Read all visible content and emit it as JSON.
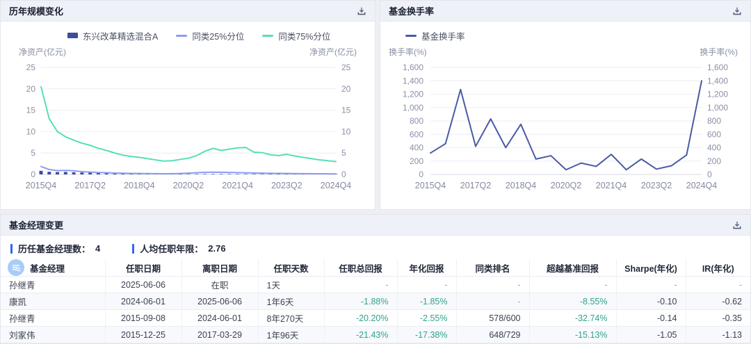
{
  "colors": {
    "accent_blue": "#2e66f6",
    "bar_navy": "#3e4d9b",
    "line_purple": "#8c9cf1",
    "line_mint": "#55dfb4",
    "line_indigo": "#4a59a4",
    "green_value": "#2fa28c",
    "panel_header_bg": "#eff1f8"
  },
  "icons": {
    "download": "download-icon",
    "manager_badge": "list-search-icon"
  },
  "panel_scale": {
    "title": "历年规模变化"
  },
  "panel_turnover": {
    "title": "基金换手率"
  },
  "panel_manager": {
    "title": "基金经理变更",
    "stats": [
      {
        "label": "历任基金经理数：",
        "value": "4"
      },
      {
        "label": "人均任职年限：",
        "value": "2.76"
      }
    ],
    "table": {
      "headers": [
        "基金经理",
        "任职日期",
        "离职日期",
        "任职天数",
        "任职总回报",
        "年化回报",
        "同类排名",
        "超越基准回报",
        "Sharpe(年化)",
        "IR(年化)"
      ],
      "rows": [
        {
          "manager": "孙继青",
          "start": "2025-06-06",
          "end": "在职",
          "days": "1天",
          "total_return": "-",
          "annual_return": "-",
          "rank": "-",
          "excess_return": "-",
          "sharpe": "-",
          "ir": "-"
        },
        {
          "manager": "康凯",
          "start": "2024-06-01",
          "end": "2025-06-06",
          "days": "1年6天",
          "total_return": "-1.88%",
          "annual_return": "-1.85%",
          "rank": "-",
          "excess_return": "-8.55%",
          "sharpe": "-0.10",
          "ir": "-0.62"
        },
        {
          "manager": "孙继青",
          "start": "2015-09-08",
          "end": "2024-06-01",
          "days": "8年270天",
          "total_return": "-20.20%",
          "annual_return": "-2.55%",
          "rank": "578/600",
          "excess_return": "-32.74%",
          "sharpe": "-0.14",
          "ir": "-0.35"
        },
        {
          "manager": "刘家伟",
          "start": "2015-12-25",
          "end": "2017-03-29",
          "days": "1年96天",
          "total_return": "-21.43%",
          "annual_return": "-17.38%",
          "rank": "648/729",
          "excess_return": "-15.13%",
          "sharpe": "-1.05",
          "ir": "-1.13"
        }
      ]
    }
  },
  "chart_data": [
    {
      "type": "bar+line",
      "title": "历年规模变化",
      "ylabel_left": "净资产(亿元)",
      "ylabel_right": "净资产(亿元)",
      "ylim": [
        0,
        25
      ],
      "yticks": [
        0,
        5,
        10,
        15,
        20,
        25
      ],
      "tick_format": "plain",
      "grid": true,
      "legend_position": "top-left",
      "categories": [
        "2015Q4",
        "2016Q1",
        "2016Q2",
        "2016Q3",
        "2016Q4",
        "2017Q1",
        "2017Q2",
        "2017Q3",
        "2017Q4",
        "2018Q1",
        "2018Q2",
        "2018Q3",
        "2018Q4",
        "2019Q1",
        "2019Q2",
        "2019Q3",
        "2019Q4",
        "2020Q1",
        "2020Q2",
        "2020Q3",
        "2020Q4",
        "2021Q1",
        "2021Q2",
        "2021Q3",
        "2021Q4",
        "2022Q1",
        "2022Q2",
        "2022Q3",
        "2022Q4",
        "2023Q1",
        "2023Q2",
        "2023Q3",
        "2023Q4",
        "2024Q1",
        "2024Q2",
        "2024Q3",
        "2024Q4"
      ],
      "xtick_indices": [
        0,
        6,
        12,
        18,
        24,
        30,
        36
      ],
      "series": [
        {
          "name": "东兴改革精选混合A",
          "type": "bar",
          "color": "#3e4d9b",
          "values": [
            0.85,
            0.62,
            0.55,
            0.58,
            0.5,
            0.45,
            0.4,
            0.34,
            0.28,
            0.22,
            0.16,
            0.1,
            0.08,
            0.06,
            0.05,
            0.05,
            0.05,
            0.05,
            0.06,
            0.06,
            0.06,
            0.05,
            0.05,
            0.05,
            0.04,
            0.04,
            0.04,
            0.03,
            0.03,
            0.03,
            0.03,
            0.03,
            0.02,
            0.02,
            0.02,
            0.02,
            0.02
          ]
        },
        {
          "name": "同类25%分位",
          "type": "line",
          "color": "#8c9cf1",
          "values": [
            1.85,
            1.15,
            0.9,
            0.95,
            0.85,
            0.65,
            0.55,
            0.45,
            0.4,
            0.32,
            0.28,
            0.25,
            0.22,
            0.2,
            0.18,
            0.17,
            0.18,
            0.22,
            0.3,
            0.4,
            0.48,
            0.52,
            0.5,
            0.46,
            0.42,
            0.38,
            0.33,
            0.3,
            0.27,
            0.24,
            0.22,
            0.2,
            0.18,
            0.17,
            0.16,
            0.15,
            0.14
          ]
        },
        {
          "name": "同类75%分位",
          "type": "line",
          "color": "#55dfb4",
          "values": [
            20.5,
            13.0,
            10.0,
            8.8,
            8.0,
            7.3,
            6.8,
            6.1,
            5.6,
            5.0,
            4.5,
            4.2,
            4.0,
            3.7,
            3.4,
            3.1,
            3.2,
            3.5,
            3.8,
            4.4,
            5.4,
            6.1,
            5.6,
            5.9,
            6.2,
            6.3,
            5.2,
            5.1,
            4.6,
            4.4,
            4.7,
            4.3,
            4.0,
            3.7,
            3.4,
            3.2,
            3.0
          ]
        }
      ]
    },
    {
      "type": "line",
      "title": "基金换手率",
      "ylabel_left": "换手率(%)",
      "ylabel_right": "换手率(%)",
      "ylim": [
        0,
        1600
      ],
      "yticks": [
        0,
        200,
        400,
        600,
        800,
        1000,
        1200,
        1400,
        1600
      ],
      "tick_format": "comma",
      "grid": true,
      "legend_position": "top-left",
      "categories": [
        "2015Q4",
        "2016Q2",
        "2016Q4",
        "2017Q2",
        "2017Q4",
        "2018Q2",
        "2018Q4",
        "2019Q2",
        "2019Q4",
        "2020Q2",
        "2020Q4",
        "2021Q2",
        "2021Q4",
        "2022Q2",
        "2022Q4",
        "2023Q2",
        "2023Q4",
        "2024Q2",
        "2024Q4"
      ],
      "xtick_indices": [
        0,
        3,
        6,
        9,
        12,
        15,
        18
      ],
      "series": [
        {
          "name": "基金换手率",
          "type": "line",
          "color": "#4a59a4",
          "values": [
            320,
            460,
            1270,
            420,
            830,
            400,
            750,
            230,
            280,
            70,
            170,
            120,
            300,
            70,
            230,
            80,
            130,
            290,
            1400
          ]
        }
      ]
    }
  ]
}
